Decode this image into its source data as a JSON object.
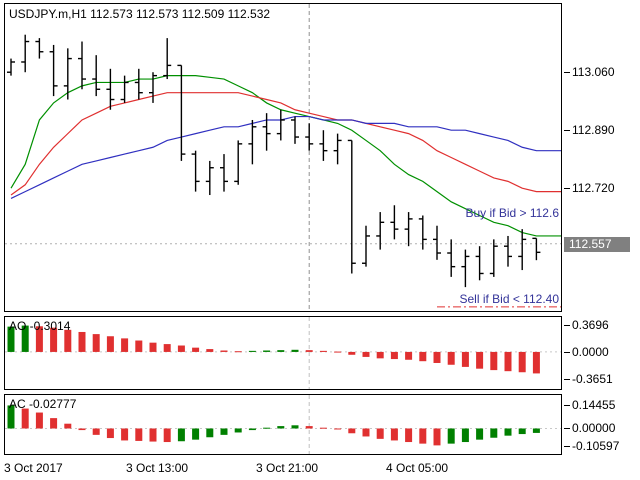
{
  "colors": {
    "bar": "#000000",
    "alligator_lips": "#009000",
    "alligator_teeth": "#e03030",
    "alligator_jaw": "#3030c0",
    "bid_line": "#b0b0b0",
    "separator": "#909090",
    "badge_bg": "#808080",
    "badge_text": "#ffffff",
    "annotation_text": "#333399"
  },
  "chart_data": [
    {
      "type": "ohlc-bars",
      "header": "USDJPY.m,H1 112.573 112.573 112.509 112.532",
      "symbol": "USDJPY.m",
      "timeframe": "H1",
      "ohlc": {
        "open": 112.573,
        "high": 112.573,
        "low": 112.509,
        "close": 112.532
      },
      "ylim": [
        112.36,
        113.26
      ],
      "y_ticks": [
        "113.060",
        "112.890",
        "112.720"
      ],
      "current_price": 112.557,
      "current_price_label": "112.557",
      "separator_bar_index": 21,
      "x_labels": [
        "3 Oct 2017",
        "3 Oct 13:00",
        "3 Oct 21:00",
        "4 Oct 05:00"
      ],
      "bars": [
        [
          113.06,
          113.1,
          113.05,
          113.09
        ],
        [
          113.09,
          113.17,
          113.06,
          113.15
        ],
        [
          113.15,
          113.16,
          113.1,
          113.12
        ],
        [
          113.12,
          113.14,
          112.99,
          113.02
        ],
        [
          113.02,
          113.13,
          112.98,
          113.1
        ],
        [
          113.1,
          113.15,
          113.01,
          113.04
        ],
        [
          113.04,
          113.11,
          112.99,
          113.01
        ],
        [
          113.01,
          113.07,
          112.95,
          112.98
        ],
        [
          112.98,
          113.05,
          112.97,
          113.03
        ],
        [
          113.03,
          113.07,
          112.98,
          113.0
        ],
        [
          113.0,
          113.06,
          112.97,
          113.05
        ],
        [
          113.05,
          113.16,
          113.04,
          113.08
        ],
        [
          113.08,
          113.08,
          112.8,
          112.82
        ],
        [
          112.82,
          112.83,
          112.71,
          112.74
        ],
        [
          112.74,
          112.8,
          112.7,
          112.78
        ],
        [
          112.78,
          112.82,
          112.71,
          112.74
        ],
        [
          112.74,
          112.86,
          112.73,
          112.85
        ],
        [
          112.85,
          112.92,
          112.79,
          112.9
        ],
        [
          112.9,
          112.94,
          112.83,
          112.88
        ],
        [
          112.88,
          112.95,
          112.86,
          112.92
        ],
        [
          112.92,
          112.93,
          112.85,
          112.87
        ],
        [
          112.87,
          112.91,
          112.83,
          112.85
        ],
        [
          112.85,
          112.89,
          112.8,
          112.83
        ],
        [
          112.83,
          112.88,
          112.79,
          112.86
        ],
        [
          112.86,
          112.86,
          112.47,
          112.5
        ],
        [
          112.5,
          112.61,
          112.49,
          112.58
        ],
        [
          112.58,
          112.65,
          112.54,
          112.62
        ],
        [
          112.62,
          112.67,
          112.57,
          112.6
        ],
        [
          112.6,
          112.65,
          112.55,
          112.63
        ],
        [
          112.63,
          112.64,
          112.54,
          112.57
        ],
        [
          112.57,
          112.61,
          112.51,
          112.53
        ],
        [
          112.53,
          112.57,
          112.46,
          112.49
        ],
        [
          112.49,
          112.54,
          112.43,
          112.52
        ],
        [
          112.52,
          112.55,
          112.45,
          112.47
        ],
        [
          112.47,
          112.57,
          112.46,
          112.55
        ],
        [
          112.55,
          112.58,
          112.49,
          112.52
        ],
        [
          112.52,
          112.6,
          112.48,
          112.57
        ],
        [
          112.573,
          112.573,
          112.509,
          112.532
        ]
      ],
      "series": [
        {
          "name": "alligator-lips-green",
          "color": "#009000",
          "values": [
            112.72,
            112.79,
            112.92,
            112.97,
            113.0,
            113.02,
            113.03,
            113.03,
            113.03,
            113.04,
            113.04,
            113.05,
            113.05,
            113.05,
            113.045,
            113.04,
            113.02,
            113.0,
            112.97,
            112.95,
            112.94,
            112.93,
            112.92,
            112.91,
            112.89,
            112.86,
            112.83,
            112.79,
            112.76,
            112.74,
            112.71,
            112.68,
            112.66,
            112.64,
            112.62,
            112.61,
            112.59,
            112.58
          ]
        },
        {
          "name": "alligator-teeth-red",
          "color": "#e03030",
          "values": [
            112.7,
            112.73,
            112.79,
            112.84,
            112.88,
            112.92,
            112.94,
            112.96,
            112.97,
            112.98,
            112.99,
            113.0,
            113.0,
            113.0,
            113.0,
            113.0,
            113.0,
            112.99,
            112.98,
            112.97,
            112.95,
            112.94,
            112.93,
            112.92,
            112.92,
            112.91,
            112.9,
            112.89,
            112.88,
            112.86,
            112.83,
            112.81,
            112.79,
            112.77,
            112.75,
            112.74,
            112.72,
            112.71
          ]
        },
        {
          "name": "alligator-jaw-blue",
          "color": "#3030c0",
          "values": [
            112.69,
            112.71,
            112.73,
            112.75,
            112.77,
            112.79,
            112.8,
            112.81,
            112.82,
            112.83,
            112.84,
            112.86,
            112.87,
            112.88,
            112.89,
            112.9,
            112.9,
            112.91,
            112.92,
            112.92,
            112.93,
            112.93,
            112.92,
            112.92,
            112.92,
            112.91,
            112.91,
            112.91,
            112.9,
            112.9,
            112.9,
            112.89,
            112.89,
            112.88,
            112.87,
            112.86,
            112.84,
            112.83
          ]
        }
      ],
      "annotations": [
        {
          "text": "Buy if Bid > 112.6",
          "price": 112.64
        },
        {
          "text": "Sell if Bid < 112.40",
          "price": 112.4,
          "line_price": 112.372,
          "line_color": "#e03030"
        }
      ]
    },
    {
      "type": "bar",
      "name": "AO",
      "label": "AO -0.3014",
      "current_value": -0.3014,
      "ylim": [
        -0.52,
        0.49
      ],
      "y_ticks": [
        "0.3696",
        "0.0000",
        "-0.3651"
      ],
      "up_color": "#008000",
      "down_color": "#e03030",
      "values": [
        0.355,
        0.3696,
        0.36,
        0.34,
        0.31,
        0.28,
        0.25,
        0.22,
        0.19,
        0.16,
        0.13,
        0.11,
        0.09,
        0.06,
        0.04,
        0.02,
        0.01,
        0.015,
        0.02,
        0.025,
        0.03,
        0.025,
        0.015,
        0.005,
        -0.04,
        -0.07,
        -0.09,
        -0.1,
        -0.11,
        -0.13,
        -0.155,
        -0.18,
        -0.21,
        -0.235,
        -0.255,
        -0.27,
        -0.285,
        -0.3014
      ]
    },
    {
      "type": "bar",
      "name": "AC",
      "label": "AC -0.02777",
      "current_value": -0.02777,
      "ylim": [
        -0.16,
        0.21
      ],
      "y_ticks": [
        "0.14455",
        "0.00000",
        "-0.10597"
      ],
      "up_color": "#008000",
      "down_color": "#e03030",
      "values": [
        0.14455,
        0.125,
        0.1,
        0.065,
        0.03,
        -0.01,
        -0.04,
        -0.06,
        -0.075,
        -0.078,
        -0.082,
        -0.085,
        -0.08,
        -0.07,
        -0.055,
        -0.04,
        -0.025,
        -0.01,
        0.005,
        0.015,
        0.02,
        0.015,
        0.005,
        -0.005,
        -0.03,
        -0.05,
        -0.065,
        -0.075,
        -0.085,
        -0.095,
        -0.10597,
        -0.095,
        -0.085,
        -0.07,
        -0.058,
        -0.045,
        -0.035,
        -0.02777
      ]
    }
  ]
}
